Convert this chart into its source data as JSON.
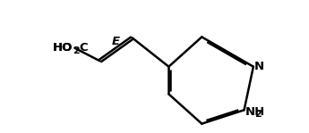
{
  "background_color": "#ffffff",
  "bond_color": "#000000",
  "figsize": [
    3.45,
    1.49
  ],
  "dpi": 100,
  "label_E": "E",
  "label_HO2C": "HO",
  "label_2": "2",
  "label_C": "C",
  "label_N": "N",
  "label_NH": "NH",
  "label_2b": "2",
  "lw": 1.8,
  "ring_r": 0.52,
  "bl": 0.62
}
